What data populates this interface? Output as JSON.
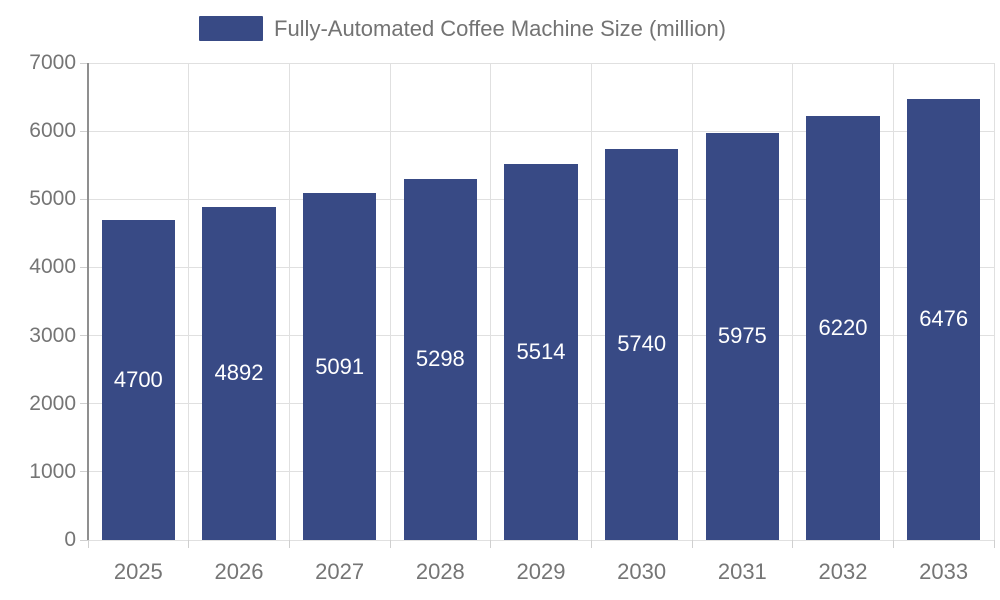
{
  "legend": {
    "label": "Fully-Automated Coffee Machine Size (million)"
  },
  "chart_data": {
    "type": "bar",
    "title": "Fully-Automated Coffee Machine Size (million)",
    "categories": [
      "2025",
      "2026",
      "2027",
      "2028",
      "2029",
      "2030",
      "2031",
      "2032",
      "2033"
    ],
    "values": [
      4700,
      4892,
      5091,
      5298,
      5514,
      5740,
      5975,
      6220,
      6476
    ],
    "xlabel": "",
    "ylabel": "",
    "ylim": [
      0,
      7000
    ],
    "ytick_interval": 1000,
    "ytick_labels": [
      "0",
      "1000",
      "2000",
      "3000",
      "4000",
      "5000",
      "6000",
      "7000"
    ],
    "grid": true,
    "legend_position": "top",
    "value_labels_shown": true,
    "colors": {
      "bar": "#384a85",
      "value_label": "#ffffff",
      "legend_text": "#737373",
      "axis_text": "#757575",
      "gridline": "#e0e0e0",
      "axis_line": "#8f8f8f",
      "tick": "#cfcfcf"
    }
  }
}
